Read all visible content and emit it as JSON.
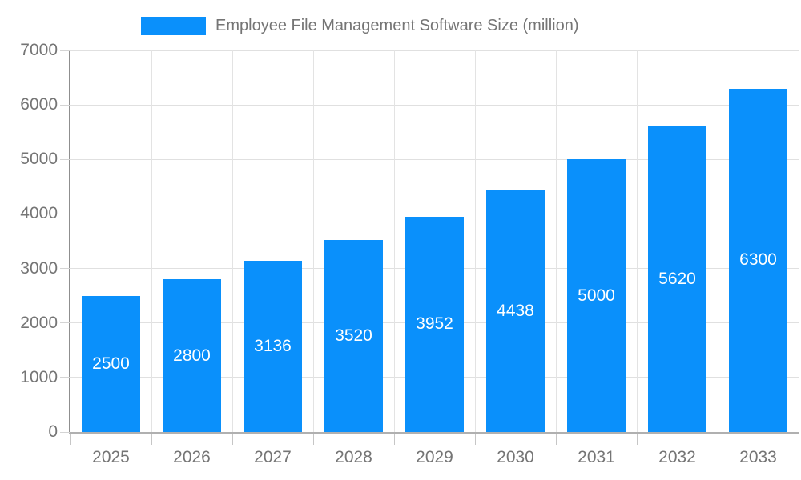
{
  "chart_data": {
    "type": "bar",
    "title": "Employee File Management Software Size (million)",
    "categories": [
      "2025",
      "2026",
      "2027",
      "2028",
      "2029",
      "2030",
      "2031",
      "2032",
      "2033"
    ],
    "values": [
      2500,
      2800,
      3136,
      3520,
      3952,
      4438,
      5000,
      5620,
      6300
    ],
    "series": [
      {
        "name": "Employee File Management Software Size (million)",
        "values": [
          2500,
          2800,
          3136,
          3520,
          3952,
          4438,
          5000,
          5620,
          6300
        ]
      }
    ],
    "xlabel": "",
    "ylabel": "",
    "ylim": [
      0,
      7000
    ],
    "yticks": [
      0,
      1000,
      2000,
      3000,
      4000,
      5000,
      6000,
      7000
    ],
    "grid": true,
    "legend_position": "top",
    "value_labels": "inside-center"
  },
  "legend": {
    "label": "Employee File Management Software Size (million)",
    "swatch_color": "#0a90fb"
  },
  "colors": {
    "bar": "#0a90fb",
    "value_label_text": "#ffffff",
    "tick_text": "#757575",
    "gridline": "#e0e0e0",
    "axis_y": "#8f8f8f",
    "axis_x": "#b0b0b0",
    "background": "#ffffff"
  }
}
